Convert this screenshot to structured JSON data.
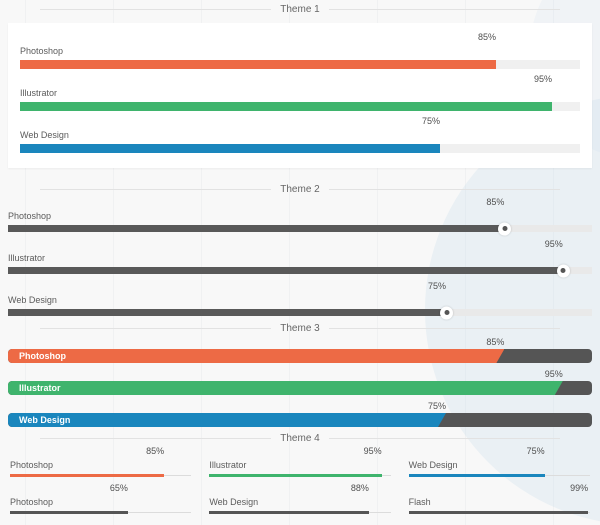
{
  "colors": {
    "orange": "#ed6a45",
    "green": "#3fb46d",
    "blue": "#1a86bd",
    "dark_bar": "#595959",
    "dark_track": "#555555",
    "light_track": "#f0f0f0"
  },
  "theme1": {
    "title": "Theme 1",
    "skills": [
      {
        "label": "Photoshop",
        "percent": 85,
        "percent_label": "85%",
        "color": "#ed6a45"
      },
      {
        "label": "Illustrator",
        "percent": 95,
        "percent_label": "95%",
        "color": "#3fb46d"
      },
      {
        "label": "Web Design",
        "percent": 75,
        "percent_label": "75%",
        "color": "#1a86bd"
      }
    ]
  },
  "theme2": {
    "title": "Theme 2",
    "skills": [
      {
        "label": "Photoshop",
        "percent": 85,
        "percent_label": "85%",
        "color": "#595959"
      },
      {
        "label": "Illustrator",
        "percent": 95,
        "percent_label": "95%",
        "color": "#595959"
      },
      {
        "label": "Web Design",
        "percent": 75,
        "percent_label": "75%",
        "color": "#595959"
      }
    ]
  },
  "theme3": {
    "title": "Theme 3",
    "skills": [
      {
        "label": "Photoshop",
        "percent": 85,
        "percent_label": "85%",
        "color": "#ed6a45"
      },
      {
        "label": "Illustrator",
        "percent": 95,
        "percent_label": "95%",
        "color": "#3fb46d"
      },
      {
        "label": "Web Design",
        "percent": 75,
        "percent_label": "75%",
        "color": "#1a86bd"
      }
    ]
  },
  "theme4": {
    "title": "Theme 4",
    "row1": [
      {
        "label": "Photoshop",
        "percent": 85,
        "percent_label": "85%",
        "color": "#ed6a45"
      },
      {
        "label": "Illustrator",
        "percent": 95,
        "percent_label": "95%",
        "color": "#3fb46d"
      },
      {
        "label": "Web Design",
        "percent": 75,
        "percent_label": "75%",
        "color": "#1a86bd"
      }
    ],
    "row2": [
      {
        "label": "Photoshop",
        "percent": 65,
        "percent_label": "65%",
        "color": "#555555"
      },
      {
        "label": "Web Design",
        "percent": 88,
        "percent_label": "88%",
        "color": "#555555"
      },
      {
        "label": "Flash",
        "percent": 99,
        "percent_label": "99%",
        "color": "#555555"
      }
    ]
  }
}
